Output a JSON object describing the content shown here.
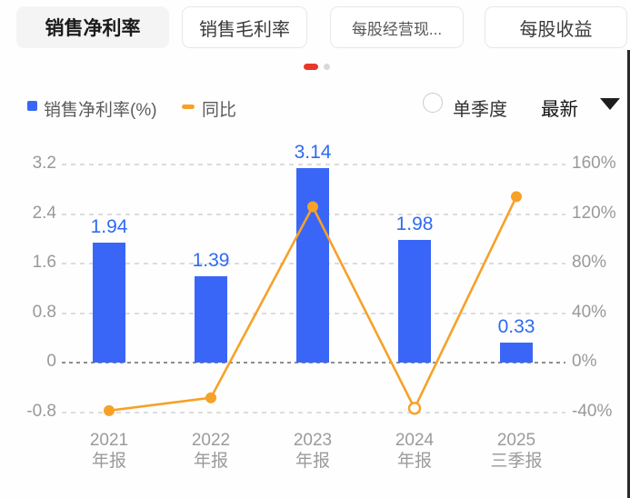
{
  "tabs": [
    {
      "label": "销售净利率",
      "active": true
    },
    {
      "label": "销售毛利率",
      "active": false
    },
    {
      "label": "每股经营现...",
      "active": false
    },
    {
      "label": "每股收益",
      "active": false
    }
  ],
  "pager": {
    "page_count": 2,
    "active_page": 1,
    "active_color": "#e8382c",
    "inactive_color": "#d9d9d9"
  },
  "legend": [
    {
      "label": "销售净利率(%)",
      "color": "#3a66f8",
      "type": "bar"
    },
    {
      "label": "同比",
      "color": "#f7a128",
      "type": "line"
    }
  ],
  "controls": {
    "radio_label": "单季度",
    "radio_checked": false,
    "dropdown_value": "最新"
  },
  "chart_data": {
    "type": "bar",
    "subtype": "bar+line combo, dual axis",
    "categories": [
      "2021 年报",
      "2022 年报",
      "2023 年报",
      "2024 年报",
      "2025 三季报"
    ],
    "x_labels": [
      [
        "2021",
        "年报"
      ],
      [
        "2022",
        "年报"
      ],
      [
        "2023",
        "年报"
      ],
      [
        "2024",
        "年报"
      ],
      [
        "2025",
        "三季报"
      ]
    ],
    "series": [
      {
        "name": "销售净利率(%)",
        "type": "bar",
        "axis": "left",
        "color": "#3a66f8",
        "values": [
          1.94,
          1.39,
          3.14,
          1.98,
          0.33
        ],
        "data_labels": [
          "1.94",
          "1.39",
          "3.14",
          "1.98",
          "0.33"
        ]
      },
      {
        "name": "同比",
        "type": "line",
        "axis": "right",
        "color": "#f7a128",
        "values_pct": [
          -38.8,
          -28.4,
          125.9,
          -36.9,
          134
        ],
        "hollow_point_index": 3
      }
    ],
    "left_axis": {
      "ticks": [
        3.2,
        2.4,
        1.6,
        0.8,
        0,
        -0.8
      ],
      "tick_labels": [
        "3.2",
        "2.4",
        "1.6",
        "0.8",
        "0",
        "-0.8"
      ],
      "range": [
        -0.8,
        3.2
      ]
    },
    "right_axis": {
      "ticks_pct": [
        160,
        120,
        80,
        40,
        0,
        -40
      ],
      "tick_labels": [
        "160%",
        "120%",
        "80%",
        "40%",
        "0%",
        "-40%"
      ],
      "range_pct": [
        -40,
        160
      ]
    },
    "grid": "dashed horizontal",
    "legend_position": "top-left",
    "title": "",
    "xlabel": "",
    "ylabel": ""
  },
  "colors": {
    "bar_blue": "#3a66f8",
    "bar_label_blue": "#2e6bf2",
    "line_orange": "#f7a128",
    "axis_text_gray": "#999999",
    "pager_red": "#e8382c"
  }
}
